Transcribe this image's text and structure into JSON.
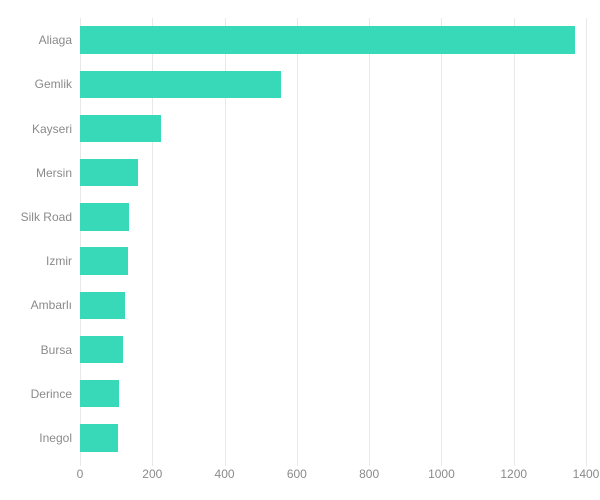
{
  "chart": {
    "type": "bar-horizontal",
    "xlim": [
      0,
      1400
    ],
    "xtick_step": 200,
    "xticks": [
      0,
      200,
      400,
      600,
      800,
      1000,
      1200,
      1400
    ],
    "bar_color": "#38d9b9",
    "grid_color": "#e8e8e8",
    "background_color": "#ffffff",
    "label_color": "#8a8a8a",
    "label_fontsize": 12,
    "bar_height_ratio": 0.62,
    "categories": [
      "Aliaga",
      "Gemlik",
      "Kayseri",
      "Mersin",
      "Silk Road",
      "Izmir",
      "Ambarlı",
      "Bursa",
      "Derince",
      "Inegol"
    ],
    "values": [
      1370,
      555,
      225,
      160,
      135,
      132,
      125,
      120,
      108,
      105
    ]
  }
}
